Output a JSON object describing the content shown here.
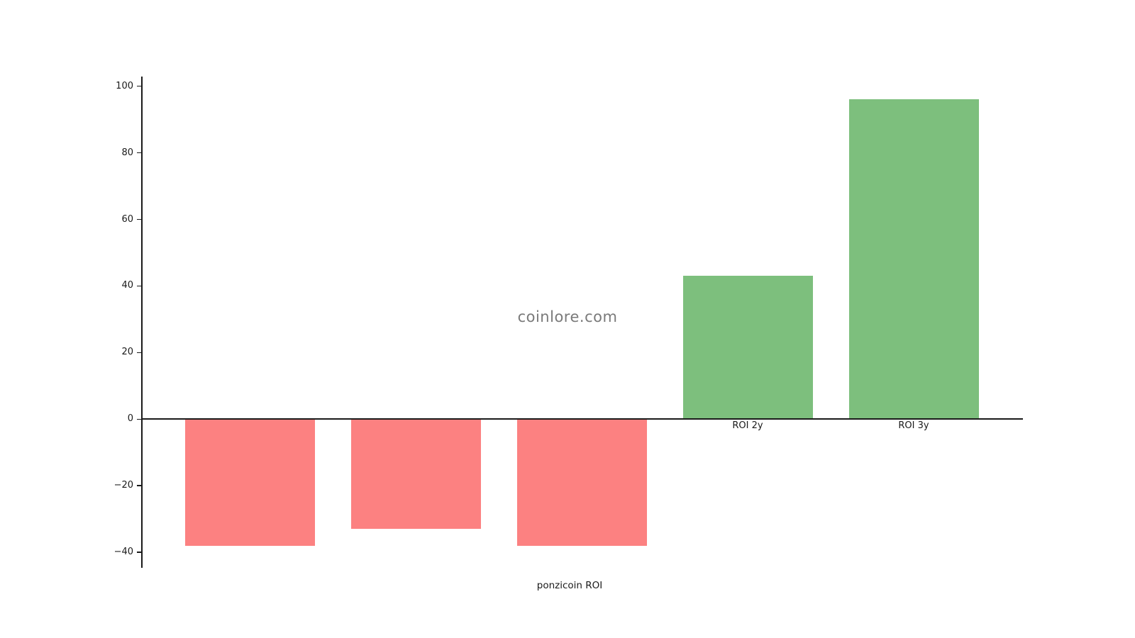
{
  "watermark": {
    "text": "coinlore.com",
    "color": "#7a7a7a"
  },
  "chart_data": {
    "type": "bar",
    "title": "",
    "xlabel": "ponzicoin ROI",
    "ylabel": "",
    "categories": [
      "",
      "",
      "",
      "ROI 2y",
      "ROI 3y"
    ],
    "values": [
      -38,
      -33,
      -38,
      43,
      96
    ],
    "yticks": [
      100,
      80,
      60,
      40,
      20,
      0,
      -20,
      -40
    ],
    "ylim": [
      -44.7,
      102.7
    ],
    "grid": false,
    "legend": null,
    "colors": {
      "positive": "#7dbf7d",
      "negative": "#fc8181",
      "axis": "#1a1a1a",
      "tick_label": "#1a1a1a",
      "background": "#ffffff"
    }
  }
}
